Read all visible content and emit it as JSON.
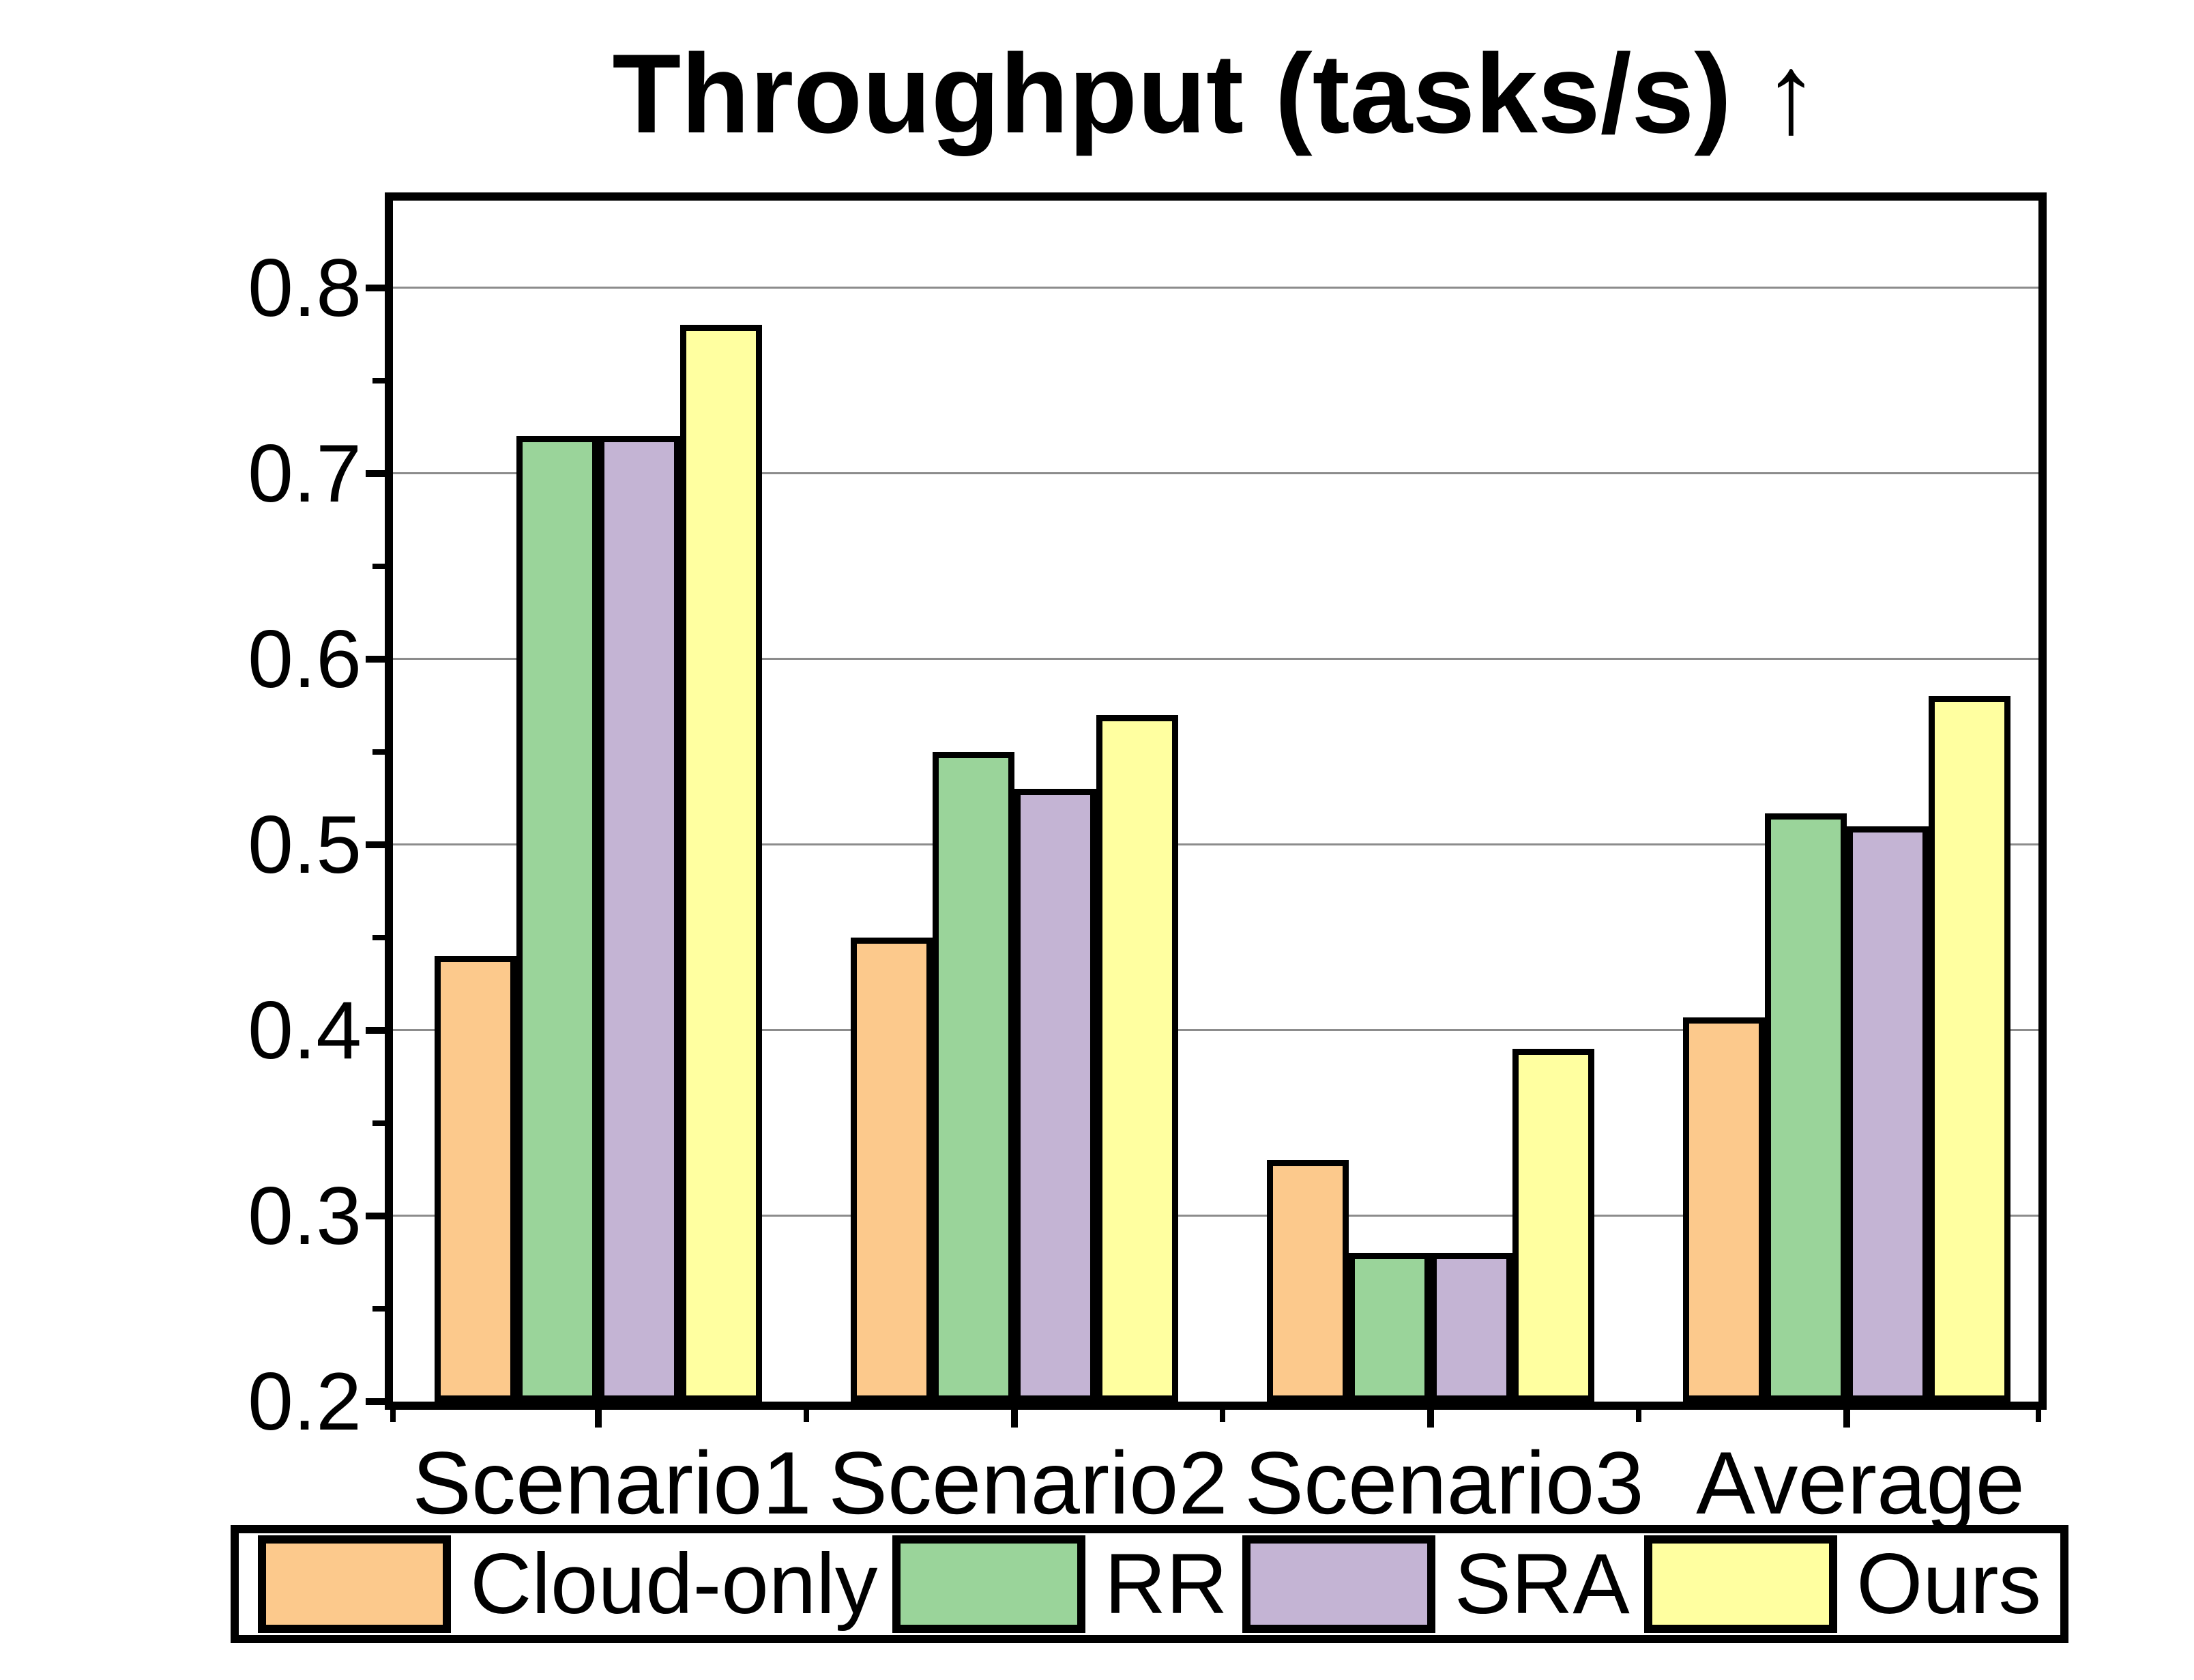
{
  "title": "Throughput (tasks/s) ↑",
  "chart_data": {
    "type": "bar",
    "title": "Throughput (tasks/s) ↑",
    "title_arrow_meaning": "higher is better",
    "categories": [
      "Scenario1",
      "Scenario2",
      "Scenario3",
      "Average"
    ],
    "series": [
      {
        "name": "Cloud-only",
        "color": "#FCC98C",
        "values": [
          0.44,
          0.45,
          0.33,
          0.407
        ]
      },
      {
        "name": "RR",
        "color": "#9AD49A",
        "values": [
          0.72,
          0.55,
          0.28,
          0.517
        ]
      },
      {
        "name": "SRA",
        "color": "#C4B4D4",
        "values": [
          0.72,
          0.53,
          0.28,
          0.51
        ]
      },
      {
        "name": "Ours",
        "color": "#FFFFA0",
        "values": [
          0.78,
          0.57,
          0.39,
          0.58
        ]
      }
    ],
    "xlabel": "",
    "ylabel": "",
    "ylim": [
      0.2,
      0.847
    ],
    "yticks": [
      {
        "value": 0.2,
        "label": "0.2"
      },
      {
        "value": 0.3,
        "label": "0.3"
      },
      {
        "value": 0.4,
        "label": "0.4"
      },
      {
        "value": 0.5,
        "label": "0.5"
      },
      {
        "value": 0.6,
        "label": "0.6"
      },
      {
        "value": 0.7,
        "label": "0.7"
      },
      {
        "value": 0.8,
        "label": "0.8"
      }
    ],
    "minor_yticks": [
      0.25,
      0.35,
      0.45,
      0.55,
      0.65,
      0.75
    ],
    "grid": "horizontal",
    "legend_position": "bottom"
  },
  "colors": {
    "background": "#FFFFFF",
    "axis": "#000000",
    "gridline": "#8C8C8C",
    "text": "#000000"
  }
}
